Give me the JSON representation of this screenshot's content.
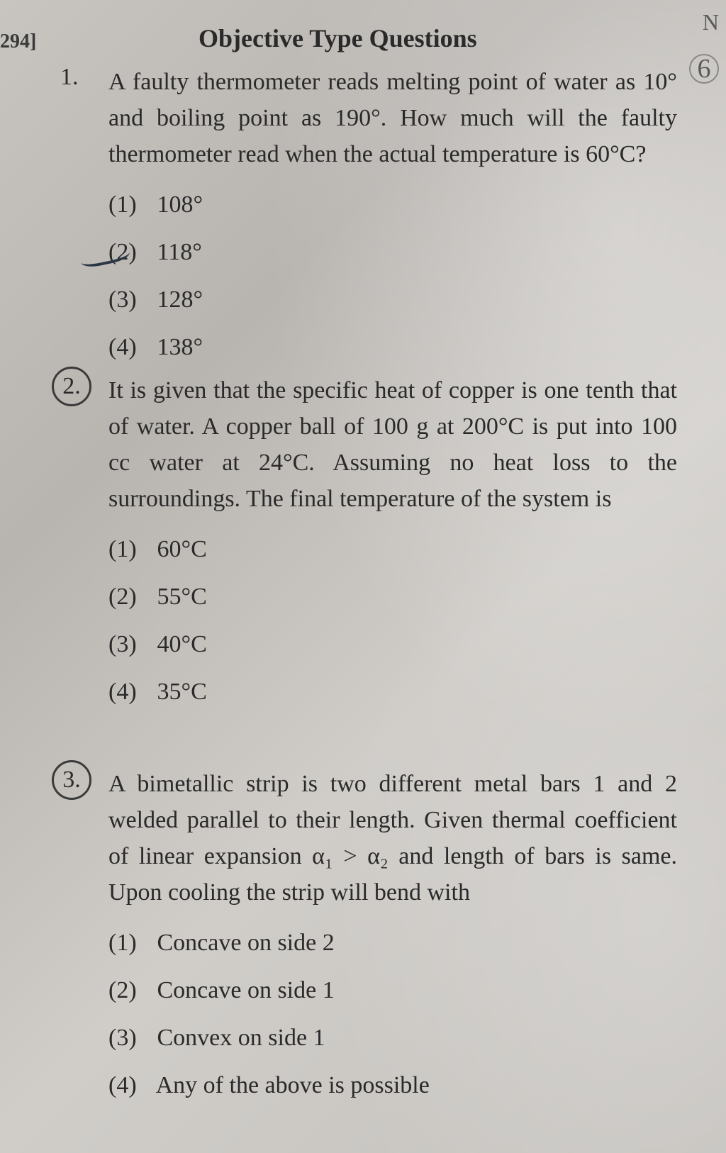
{
  "header": {
    "page_ref": "294]",
    "section_title": "Objective Type Questions",
    "margin_top": "N",
    "margin_second": "6"
  },
  "questions": [
    {
      "number": "1.",
      "text": "A faulty thermometer reads melting point of water as 10° and boiling point as 190°. How much will the faulty thermometer read when the actual temperature is 60°C?",
      "options": [
        {
          "num": "(1)",
          "text": "108°"
        },
        {
          "num": "(2)",
          "text": "118°",
          "marked": true
        },
        {
          "num": "(3)",
          "text": "128°"
        },
        {
          "num": "(4)",
          "text": "138°"
        }
      ]
    },
    {
      "number": "2.",
      "circled": true,
      "text": "It is given that the specific heat of copper is one tenth that of water. A copper ball of 100 g at 200°C is put into 100 cc water at 24°C. Assuming no heat loss to the surroundings. The final temperature of the system is",
      "options": [
        {
          "num": "(1)",
          "text": "60°C"
        },
        {
          "num": "(2)",
          "text": "55°C"
        },
        {
          "num": "(3)",
          "text": "40°C"
        },
        {
          "num": "(4)",
          "text": "35°C"
        }
      ]
    },
    {
      "number": "3.",
      "circled": true,
      "text": "A bimetallic strip is two different metal bars 1 and 2 welded parallel to their length. Given thermal coefficient of linear expansion α₁ > α₂ and length of bars is same. Upon cooling the strip will bend with",
      "options": [
        {
          "num": "(1)",
          "text": "Concave on side 2"
        },
        {
          "num": "(2)",
          "text": "Concave on side 1"
        },
        {
          "num": "(3)",
          "text": "Convex on side 1"
        },
        {
          "num": "(4)",
          "text": "Any of the above is possible"
        }
      ]
    }
  ],
  "styling": {
    "bg_gradient_start": "#c8c4c0",
    "bg_gradient_end": "#c5c2be",
    "text_color": "#2a2a2a",
    "pen_color": "#2a3845",
    "title_fontsize": 36,
    "body_fontsize": 34,
    "option_fontsize": 34
  }
}
